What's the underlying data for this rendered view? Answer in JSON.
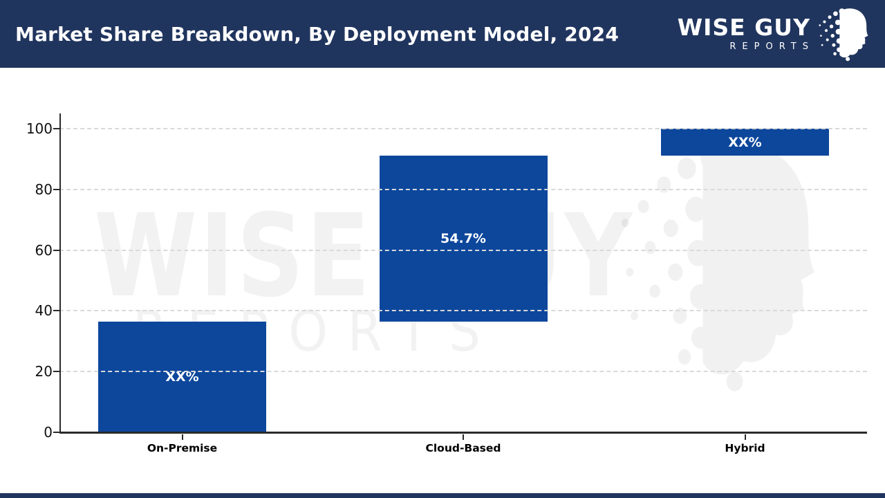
{
  "header": {
    "title": "Market Share Breakdown, By Deployment Model, 2024",
    "logo": {
      "wordmark": "WISE GUY",
      "subtext": "REPORTS"
    }
  },
  "watermark": {
    "line1": "WISE GUY",
    "line2": "REPORTS"
  },
  "chart_data": {
    "type": "bar",
    "subtype": "waterfall",
    "title": "Market Share Breakdown, By Deployment Model, 2024",
    "categories": [
      "On-Premise",
      "Cloud-Based",
      "Hybrid"
    ],
    "segments": [
      {
        "category": "On-Premise",
        "start": 0,
        "end": 36.4,
        "value": 36.4,
        "label": "XX%"
      },
      {
        "category": "Cloud-Based",
        "start": 36.4,
        "end": 91.1,
        "value": 54.7,
        "label": "54.7%"
      },
      {
        "category": "Hybrid",
        "start": 91.1,
        "end": 100,
        "value": 8.9,
        "label": "XX%"
      }
    ],
    "yticks": [
      0,
      20,
      40,
      60,
      80,
      100
    ],
    "ylim": [
      0,
      104
    ],
    "xlabel": "",
    "ylabel": "",
    "grid": "horizontal-dashed",
    "legend": "none",
    "unit": "%",
    "bar_color": "#0d479c",
    "bar_label_color": "#ffffff"
  },
  "colors": {
    "header_navy": "#20355e",
    "bar_blue": "#0d479c",
    "gridline_gray": "#d9d9d9",
    "axis_dark": "#2a2a2a"
  }
}
